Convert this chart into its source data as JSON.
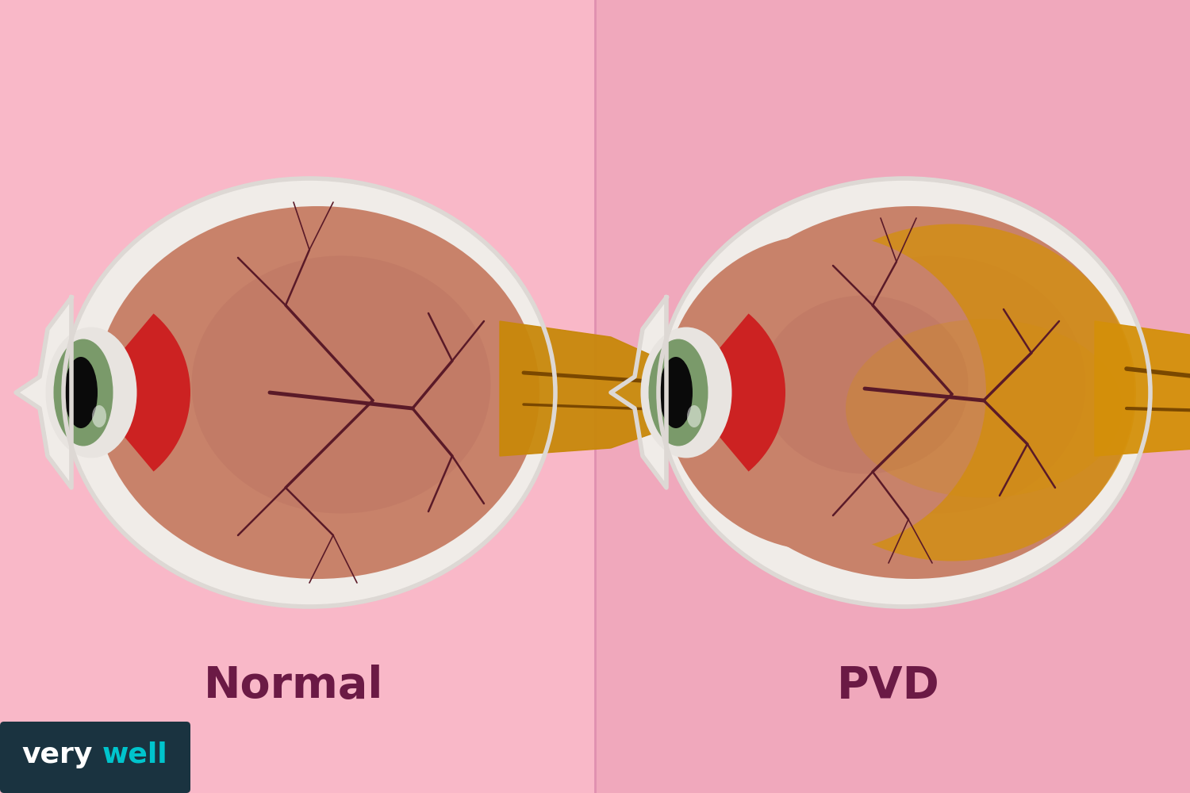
{
  "bg_left": "#f9b8c8",
  "bg_right": "#f0a8bc",
  "label_normal": "Normal",
  "label_pvd": "PVD",
  "label_color": "#6b1a45",
  "label_fontsize": 40,
  "label_fontweight": "bold",
  "verywell_bg": "#1a3340",
  "verywell_text": "very",
  "verywell_text2": "well",
  "verywell_color": "#ffffff",
  "verywell_color2": "#00c4cc",
  "eyeball_color": "#c8826a",
  "eyeball_inner_color": "#b87060",
  "sclera_color": "#f0ece8",
  "sclera_edge": "#ddd8d4",
  "vessel_color": "#5a1a28",
  "pvd_color": "#d4900a",
  "pvd_alpha": 0.75,
  "cornea_white": "#e8e4e0",
  "iris_color": "#7a9a6a",
  "pupil_color": "#0a0a0a",
  "red_ring_color": "#cc2222",
  "tail_color": "#c8880a",
  "tail_dark": "#7a4800"
}
